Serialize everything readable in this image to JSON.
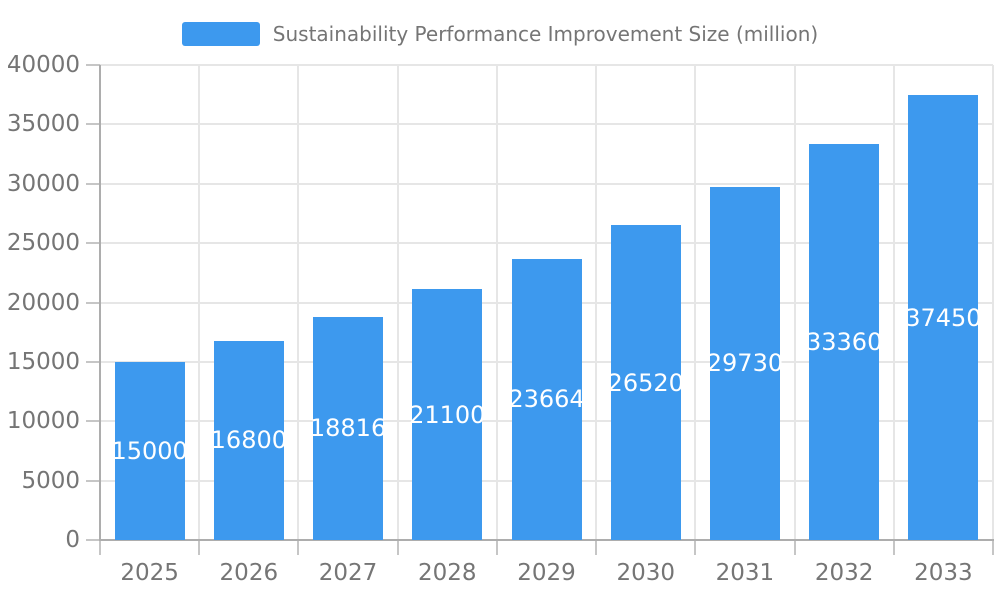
{
  "chart_data": {
    "type": "bar",
    "title": "Sustainability Performance Improvement Size (million)",
    "legend": [
      "Sustainability Performance Improvement Size (million)"
    ],
    "legend_position": "top-center",
    "categories": [
      "2025",
      "2026",
      "2027",
      "2028",
      "2029",
      "2030",
      "2031",
      "2032",
      "2033"
    ],
    "values": [
      15000,
      16800,
      18816,
      21100,
      23664,
      26520,
      29730,
      33360,
      37450
    ],
    "bar_labels": [
      "15000",
      "16800",
      "18816",
      "21100",
      "23664",
      "26520",
      "29730",
      "33360",
      "37450"
    ],
    "y_ticks": [
      0,
      5000,
      10000,
      15000,
      20000,
      25000,
      30000,
      35000,
      40000
    ],
    "y_tick_labels": [
      "0",
      "5000",
      "10000",
      "15000",
      "20000",
      "25000",
      "30000",
      "35000",
      "40000"
    ],
    "ylim": [
      0,
      40000
    ],
    "xlabel": "",
    "ylabel": "",
    "grid": true,
    "colors": {
      "bar": "#3D99EE",
      "bar_label": "#FFFFFF",
      "axis_line": "#ADADAD",
      "gridline": "#E6E6E6",
      "tick_mark": "#C6C6C6",
      "text": "#757575",
      "background": "#FFFFFF"
    }
  }
}
